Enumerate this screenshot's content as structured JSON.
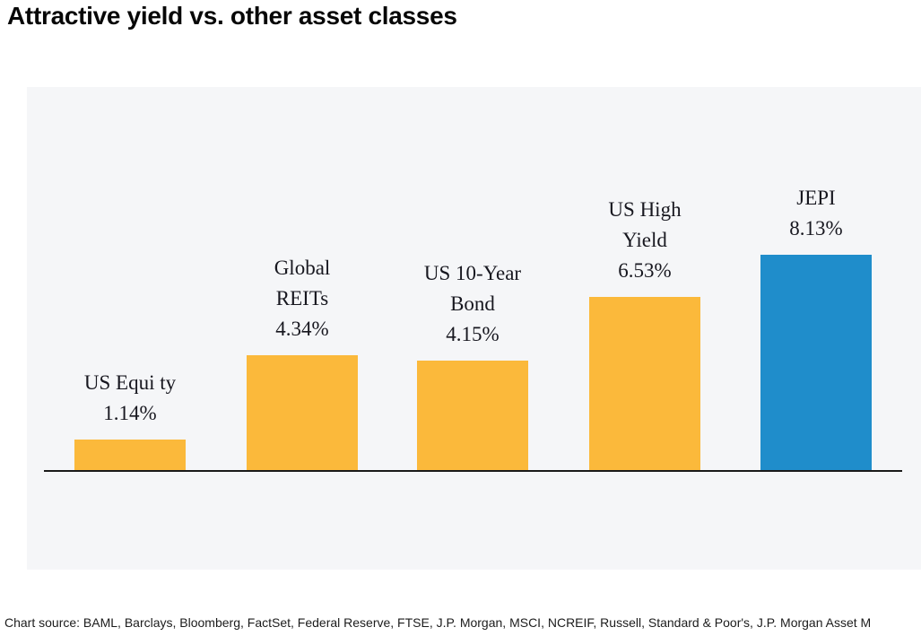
{
  "page": {
    "title": "Attractive yield vs. other asset classes",
    "source_note": "Chart source: BAML, Barclays, Bloomberg, FactSet, Federal Reserve, FTSE, J.P. Morgan, MSCI, NCREIF, Russell, Standard & Poor's, J.P. Morgan Asset M"
  },
  "chart_data": {
    "type": "bar",
    "title": "Attractive yield vs. other asset classes",
    "categories": [
      "US Equity",
      "Global REITs",
      "US 10-Year Bond",
      "US High Yield",
      "JEPI"
    ],
    "values": [
      1.14,
      4.34,
      4.15,
      6.53,
      8.13
    ],
    "value_labels": [
      "1.14%",
      "4.34%",
      "4.15%",
      "6.53%",
      "8.13%"
    ],
    "data_labels": [
      [
        "US Equi ty",
        "1.14%"
      ],
      [
        "Global",
        "REITs",
        "4.34%"
      ],
      [
        "US 10-Year",
        "Bond",
        "4.15%"
      ],
      [
        "US High",
        "Yield",
        "6.53%"
      ],
      [
        "JEPI",
        "8.13%"
      ]
    ],
    "bar_colors": [
      "#FBB93B",
      "#FBB93B",
      "#FBB93B",
      "#FBB93B",
      "#1F8DCB"
    ],
    "default_color": "#FBB93B",
    "highlight_color": "#1F8DCB",
    "panel_background": "#F5F6F8",
    "axis_line_color": "#1A1A1A",
    "label_text_color": "#17171F",
    "xlabel": "",
    "ylabel": "",
    "ylim": [
      0,
      9
    ],
    "grid": false,
    "legend": false,
    "orientation": "vertical",
    "data_label_position": "above-bar"
  }
}
